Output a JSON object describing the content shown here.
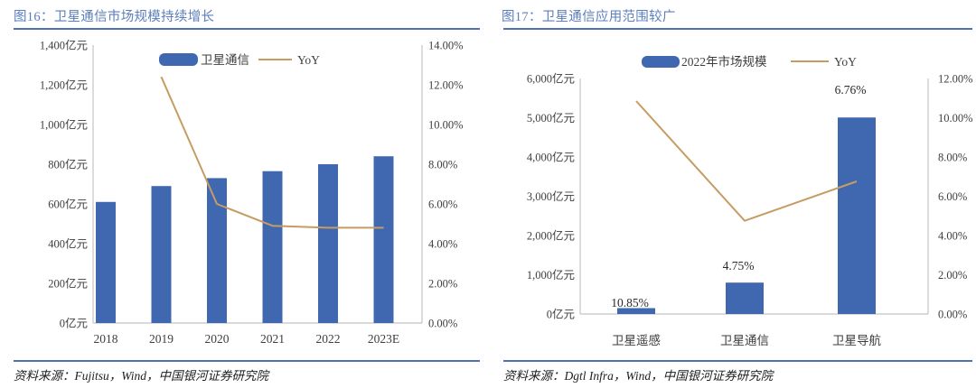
{
  "figures": [
    {
      "title": "图16：卫星通信市场规模持续增长",
      "source": "资料来源：Fujitsu，Wind，中国银河证券研究院"
    },
    {
      "title": "图17：卫星通信应用范围较广",
      "source": "资料来源：Dgtl Infra，Wind，中国银河证券研究院"
    }
  ],
  "chart_data": [
    {
      "type": "bar",
      "subtype": "bar-line-combo",
      "title": "图16：卫星通信市场规模持续增长",
      "categories": [
        "2018",
        "2019",
        "2020",
        "2021",
        "2022",
        "2023E"
      ],
      "series": [
        {
          "name": "卫星通信",
          "type": "bar",
          "axis": "left",
          "unit": "亿元",
          "values": [
            610,
            690,
            730,
            765,
            800,
            840
          ]
        },
        {
          "name": "YoY",
          "type": "line",
          "axis": "right",
          "unit": "%",
          "values": [
            null,
            12.4,
            6.0,
            4.9,
            4.8,
            4.8
          ]
        }
      ],
      "left_axis": {
        "min": 0,
        "max": 1400,
        "tick_labels": [
          "1,400亿元",
          "1,200亿元",
          "1,000亿元",
          "800亿元",
          "600亿元",
          "400亿元",
          "200亿元",
          "0亿元"
        ]
      },
      "right_axis": {
        "min": 0,
        "max": 14,
        "tick_labels": [
          "14.00%",
          "12.00%",
          "10.00%",
          "8.00%",
          "6.00%",
          "4.00%",
          "2.00%",
          "0.00%"
        ]
      },
      "legend_position": "top",
      "grid": false
    },
    {
      "type": "bar",
      "subtype": "bar-line-combo",
      "title": "图17：卫星通信应用范围较广",
      "categories": [
        "卫星遥感",
        "卫星通信",
        "卫星导航"
      ],
      "series": [
        {
          "name": "2022年市场规模",
          "type": "bar",
          "axis": "left",
          "unit": "亿元",
          "values": [
            150,
            800,
            5007
          ]
        },
        {
          "name": "YoY",
          "type": "line",
          "axis": "right",
          "unit": "%",
          "values": [
            10.85,
            4.75,
            6.76
          ],
          "data_labels": [
            "10.85%",
            "4.75%",
            "6.76%"
          ]
        }
      ],
      "left_axis": {
        "min": 0,
        "max": 6000,
        "tick_labels": [
          "6,000亿元",
          "5,000亿元",
          "4,000亿元",
          "3,000亿元",
          "2,000亿元",
          "1,000亿元",
          "0亿元"
        ]
      },
      "right_axis": {
        "min": 0,
        "max": 12,
        "tick_labels": [
          "12.00%",
          "10.00%",
          "8.00%",
          "6.00%",
          "4.00%",
          "2.00%",
          "0.00%"
        ]
      },
      "legend_position": "top",
      "grid": false
    }
  ],
  "colors": {
    "bar": "#4068b0",
    "line": "#c59d63",
    "title": "#5b7ebd",
    "rule": "#4a72b4",
    "axis_text": "#3e3e3e",
    "axis_line": "#c4c4c4",
    "data_label": "#2a2a2a"
  }
}
